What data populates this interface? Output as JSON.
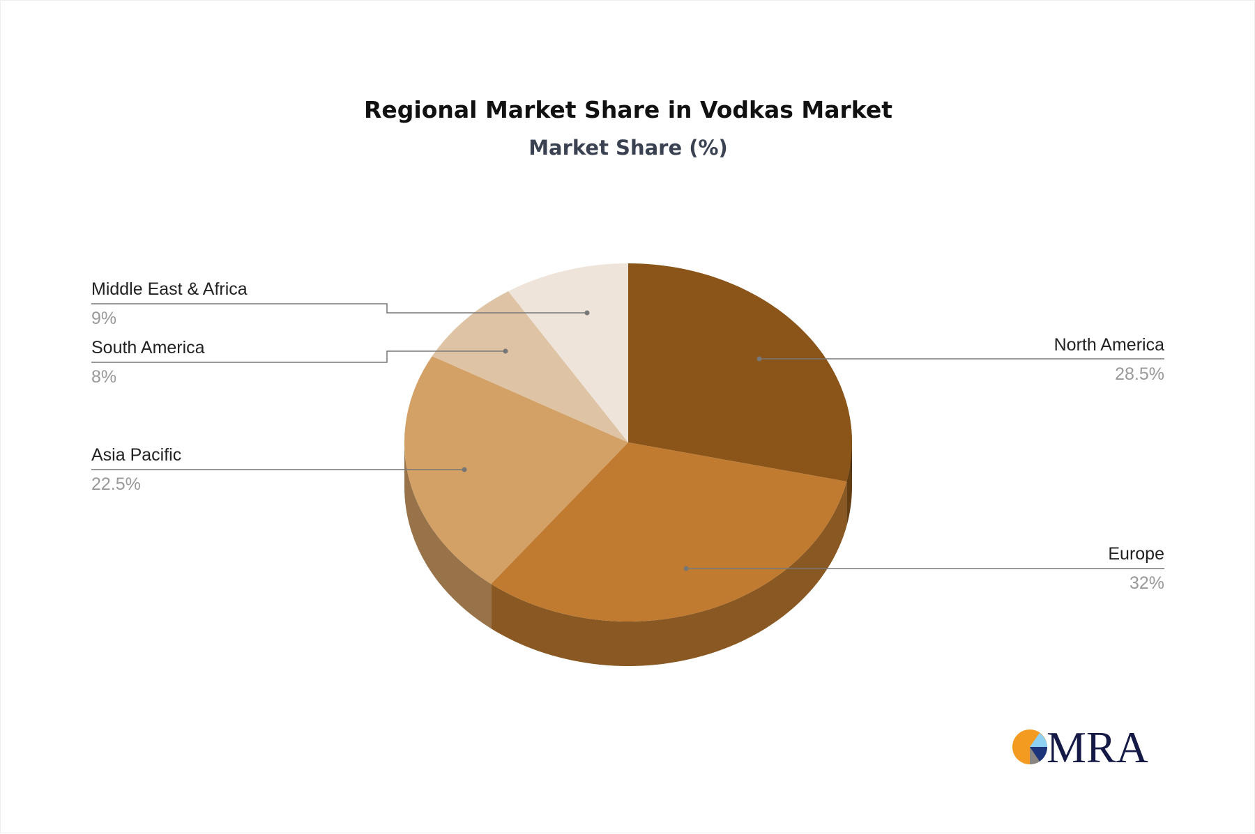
{
  "chart_data": {
    "type": "pie",
    "title": "Regional Market Share in Vodkas Market",
    "subtitle": "Market Share (%)",
    "slices": [
      {
        "label": "North America",
        "value": 28.5,
        "display": "28.5%",
        "color": "#8B5519"
      },
      {
        "label": "Europe",
        "value": 32,
        "display": "32%",
        "color": "#C07B30"
      },
      {
        "label": "Asia Pacific",
        "value": 22.5,
        "display": "22.5%",
        "color": "#D3A066"
      },
      {
        "label": "South America",
        "value": 8,
        "display": "8%",
        "color": "#DEC3A5"
      },
      {
        "label": "Middle East & Africa",
        "value": 9,
        "display": "9%",
        "color": "#EEE4DA"
      }
    ],
    "style": "3d"
  },
  "logo": {
    "text": "MRA"
  }
}
